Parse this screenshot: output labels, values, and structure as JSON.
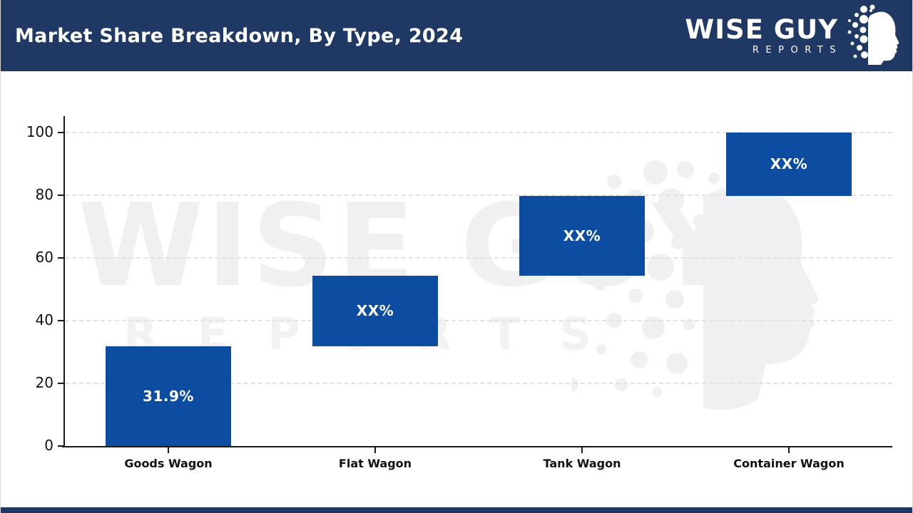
{
  "header": {
    "title": "Market Share Breakdown, By Type, 2024",
    "bg_color": "#1f3864",
    "logo": {
      "line1": "WISE GUY",
      "line2": "REPORTS"
    }
  },
  "watermark": {
    "line1": "WISE GUY",
    "line2": "REPORTS"
  },
  "chart_data": {
    "type": "bar",
    "subtype": "waterfall",
    "title": "Market Share Breakdown, By Type, 2024",
    "categories": [
      "Goods Wagon",
      "Flat Wagon",
      "Tank Wagon",
      "Container Wagon"
    ],
    "segments": [
      {
        "category": "Goods Wagon",
        "start": 0,
        "end": 31.9,
        "label": "31.9%"
      },
      {
        "category": "Flat Wagon",
        "start": 31.9,
        "end": 54.3,
        "label": "XX%"
      },
      {
        "category": "Tank Wagon",
        "start": 54.3,
        "end": 79.8,
        "label": "XX%"
      },
      {
        "category": "Container Wagon",
        "start": 79.8,
        "end": 100,
        "label": "XX%"
      }
    ],
    "xlabel": "",
    "ylabel": "",
    "ylim": [
      0,
      100
    ],
    "yticks": [
      0,
      20,
      40,
      60,
      80,
      100
    ],
    "grid": "horizontal-dashed",
    "legend": "none",
    "bar_color": "#0c4da2",
    "bar_label_color": "#ffffff",
    "axis_color": "#1a1a1a",
    "gridline_color": "#e2e2e2"
  }
}
